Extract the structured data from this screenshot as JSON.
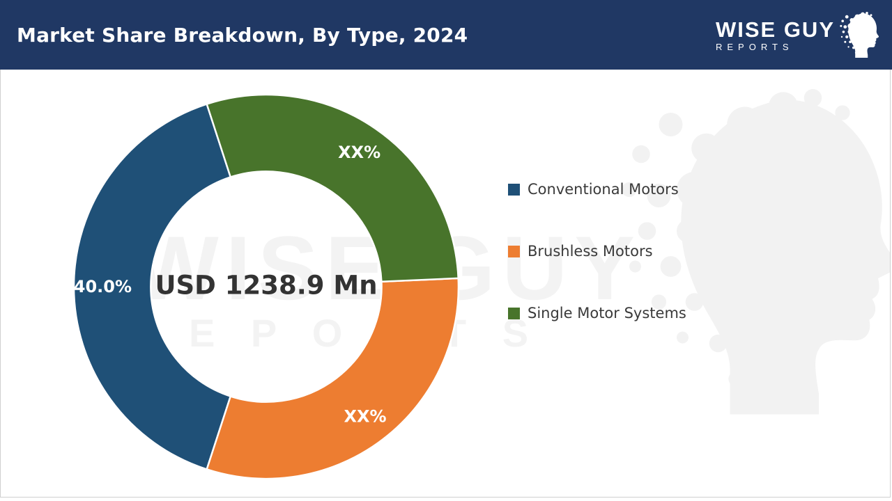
{
  "header": {
    "title": "Market Share Breakdown, By Type, 2024",
    "logo": {
      "wordmark": "WISE GUY",
      "subtext": "REPORTS"
    }
  },
  "watermark": {
    "wordmark": "WISE GUY",
    "subtext": "R E P O R T S"
  },
  "chart_data": {
    "type": "pie",
    "subtype": "donut",
    "title": "Market Share Breakdown, By Type, 2024",
    "center_label": "USD 1238.9 Mn",
    "units": "percent share",
    "start_angle_deg": 108,
    "direction": "counterclockwise",
    "inner_radius_ratio": 0.6,
    "label_distance_ratio": 0.85,
    "label_color": "#ffffff",
    "legend_position": "right",
    "series": [
      {
        "name": "Conventional Motors",
        "value": 40.0,
        "label": "40.0%",
        "color": "#1f5077"
      },
      {
        "name": "Brushless Motors",
        "value": 30.7,
        "label": "XX%",
        "color": "#ed7d31"
      },
      {
        "name": "Single Motor Systems",
        "value": 29.3,
        "label": "XX%",
        "color": "#48742b"
      }
    ]
  },
  "colors": {
    "header_bg": "#203864",
    "canvas_border": "#cfcfcf",
    "center_label_text": "#333333",
    "legend_text": "#3a3a3a",
    "watermark": "#f3f3f3"
  }
}
